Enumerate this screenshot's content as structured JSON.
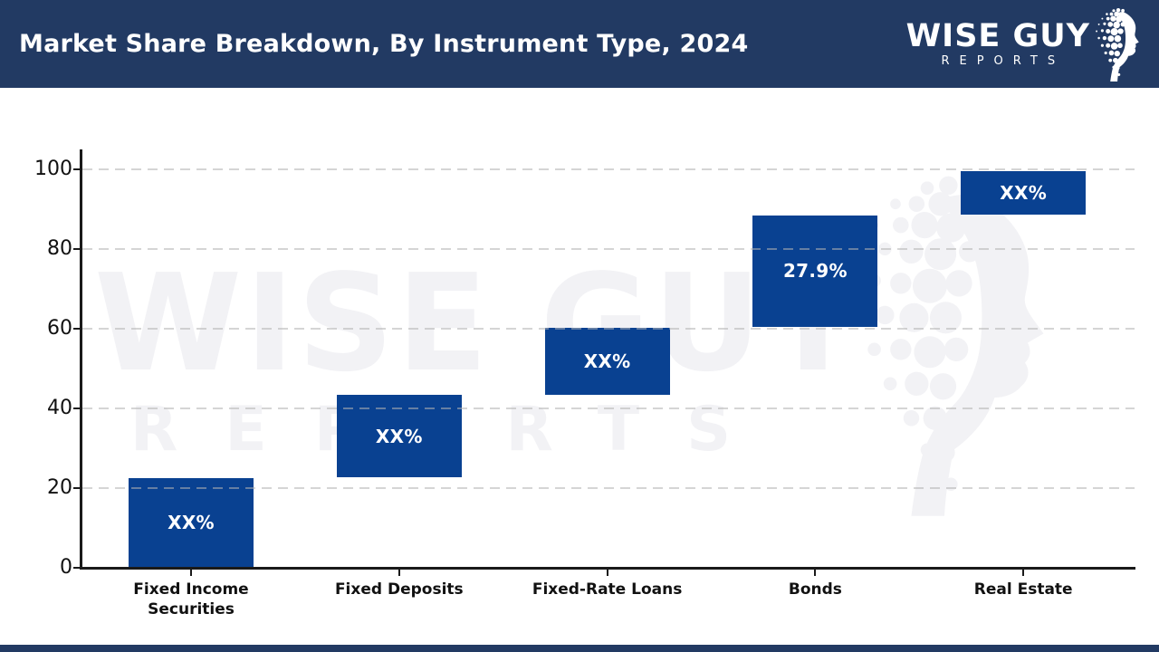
{
  "header": {
    "title": "Market Share Breakdown, By Instrument Type, 2024",
    "logo": {
      "line1": "WISE GUY",
      "line2": "REPORTS"
    }
  },
  "watermark": {
    "line1": "WISE GUY",
    "line2": "REPORTS"
  },
  "footer": {},
  "chart_data": {
    "type": "bar",
    "subtype": "floating-waterfall",
    "title": "Market Share Breakdown, By Instrument Type, 2024",
    "xlabel": "",
    "ylabel": "",
    "categories": [
      "Fixed Income Securities",
      "Fixed Deposits",
      "Fixed-Rate Loans",
      "Bonds",
      "Real Estate"
    ],
    "category_lines": [
      [
        "Fixed Income",
        "Securities"
      ],
      [
        "Fixed Deposits"
      ],
      [
        "Fixed-Rate Loans"
      ],
      [
        "Bonds"
      ],
      [
        "Real Estate"
      ]
    ],
    "series": [
      {
        "name": "Market Share %",
        "segments": [
          {
            "category": "Fixed Income Securities",
            "start": 0,
            "end": 22.6,
            "label": "XX%"
          },
          {
            "category": "Fixed Deposits",
            "start": 22.8,
            "end": 43.3,
            "label": "XX%"
          },
          {
            "category": "Fixed-Rate Loans",
            "start": 43.5,
            "end": 60.2,
            "label": "XX%"
          },
          {
            "category": "Bonds",
            "start": 60.5,
            "end": 88.4,
            "label": "27.9%",
            "value": 27.9
          },
          {
            "category": "Real Estate",
            "start": 88.6,
            "end": 99.6,
            "label": "XX%"
          }
        ]
      }
    ],
    "ylim": [
      0,
      105
    ],
    "yticks": [
      0,
      20,
      40,
      60,
      80,
      100
    ],
    "grid": "horizontal-dashed",
    "legend": "none",
    "bar_color": "#094191",
    "bar_label_color": "#ffffff"
  },
  "colors": {
    "header_bg": "#223a63",
    "footer_bg": "#223a63",
    "bar": "#094191",
    "grid": "#cfcfcf",
    "text": "#111111",
    "watermark": "#f2f2f5"
  }
}
